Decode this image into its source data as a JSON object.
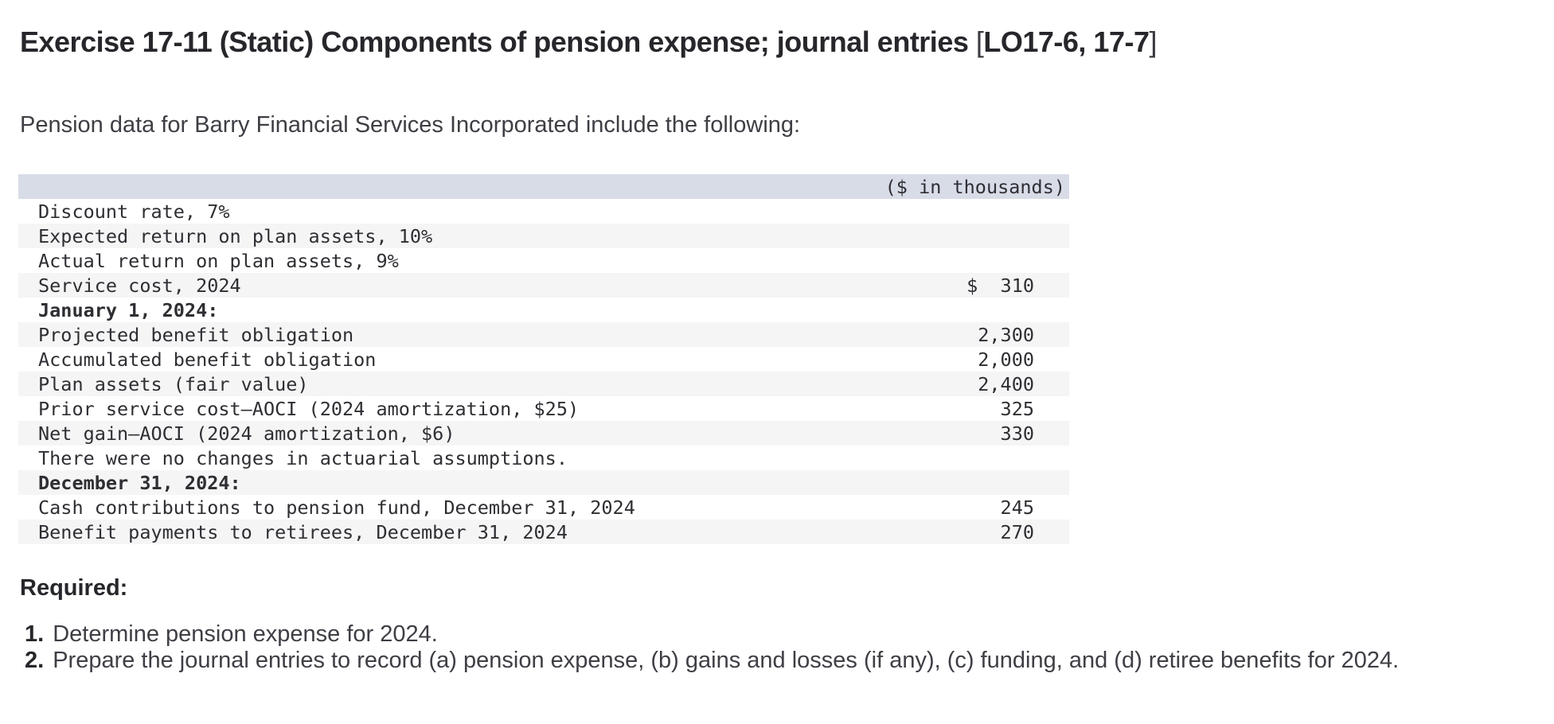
{
  "exercise": {
    "title": {
      "main": "Exercise 17-11 (Static) Components of pension expense; journal entries ",
      "bracket_open": "[",
      "lo_codes": "LO17-6, 17-7",
      "bracket_close": "]"
    },
    "intro": "Pension data for Barry Financial Services Incorporated include the following:",
    "table": {
      "header_note": "($ in thousands)",
      "rows": [
        {
          "label": "Discount rate, 7%",
          "value": "",
          "bold": false
        },
        {
          "label": "Expected return on plan assets, 10%",
          "value": "",
          "bold": false
        },
        {
          "label": "Actual return on plan assets, 9%",
          "value": "",
          "bold": false
        },
        {
          "label": "Service cost, 2024",
          "value": "$  310",
          "bold": false
        },
        {
          "label": "January 1, 2024:",
          "value": "",
          "bold": true
        },
        {
          "label": "Projected benefit obligation",
          "value": "2,300",
          "bold": false
        },
        {
          "label": "Accumulated benefit obligation",
          "value": "2,000",
          "bold": false
        },
        {
          "label": "Plan assets (fair value)",
          "value": "2,400",
          "bold": false
        },
        {
          "label": "Prior service cost—AOCI (2024 amortization, $25)",
          "value": "325",
          "bold": false
        },
        {
          "label": "Net gain—AOCI (2024 amortization, $6)",
          "value": "330",
          "bold": false
        },
        {
          "label": "There were no changes in actuarial assumptions.",
          "value": "",
          "bold": false
        },
        {
          "label": "December 31, 2024:",
          "value": "",
          "bold": true
        },
        {
          "label": "Cash contributions to pension fund, December 31, 2024",
          "value": "245",
          "bold": false
        },
        {
          "label": "Benefit payments to retirees, December 31, 2024",
          "value": "270",
          "bold": false
        }
      ]
    },
    "required_label": "Required:",
    "requirements": [
      {
        "number": "1.",
        "text": "Determine pension expense for 2024."
      },
      {
        "number": "2.",
        "text": "Prepare the journal entries to record (a) pension expense, (b) gains and losses (if any), (c) funding, and (d) retiree benefits for 2024."
      }
    ],
    "colors": {
      "table_header_bg": "#d8dce7",
      "table_alt_row_bg": "#f5f5f6"
    }
  }
}
